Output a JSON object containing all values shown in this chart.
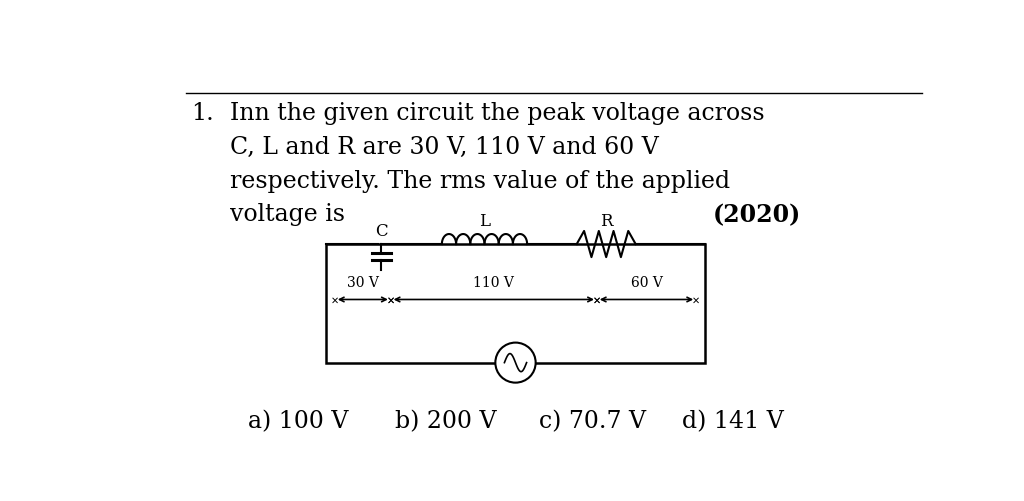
{
  "bg_color": "#ffffff",
  "text_color": "#000000",
  "question_number": "1.",
  "question_text_line1": "Inn the given circuit the peak voltage across",
  "question_text_line2": "C, L and R are 30 V, 110 V and 60 V",
  "question_text_line3": "respectively. The rms value of the applied",
  "question_text_line4": "voltage is",
  "year_label": "(2020)",
  "options": [
    "a) 100 V",
    "b) 200 V",
    "c) 70.7 V",
    "d) 141 V"
  ],
  "font_size_question": 17,
  "font_size_options": 17,
  "circuit_component_labels": [
    "C",
    "L",
    "R"
  ],
  "voltage_labels": [
    "30 V",
    "110 V",
    "60 V"
  ]
}
